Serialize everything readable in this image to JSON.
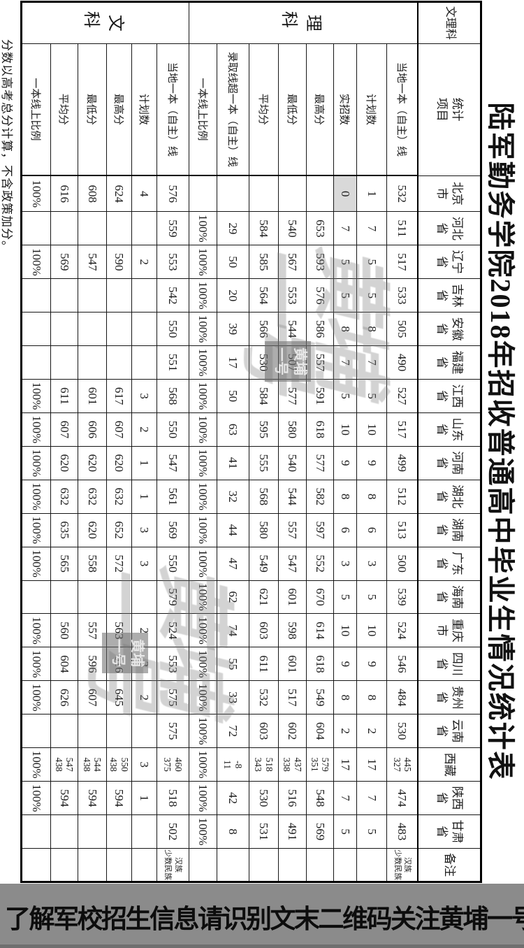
{
  "title": "陆军勤务学院2018年招收普通高中毕业生情况统计表",
  "corner": {
    "subject_header": "文理科",
    "stat_header": "统计\n项目"
  },
  "remark_header": "备注",
  "provinces": [
    "北京市",
    "河北省",
    "辽宁省",
    "吉林省",
    "安徽省",
    "福建省",
    "江西省",
    "山东省",
    "河南省",
    "湖北省",
    "湖南省",
    "广东省",
    "海南省",
    "重庆市",
    "四川省",
    "贵州省",
    "云南省",
    "西藏",
    "陕西省",
    "甘肃省"
  ],
  "groups": [
    {
      "label": "理科",
      "row_count": 8
    },
    {
      "label": "文科",
      "row_count": 6
    }
  ],
  "rows": [
    {
      "label": "当地一本（自主）线",
      "values": [
        "532",
        "511",
        "517",
        "533",
        "505",
        "490",
        "527",
        "517",
        "499",
        "512",
        "513",
        "500",
        "539",
        "524",
        "546",
        "484",
        "530",
        "445\n327",
        "474",
        "483"
      ],
      "remark": "汉族\n少数民族"
    },
    {
      "label": "计划数",
      "values": [
        "1",
        "7",
        "5",
        "5",
        "8",
        "7",
        "5",
        "10",
        "9",
        "8",
        "6",
        "3",
        "5",
        "10",
        "9",
        "8",
        "2",
        "17",
        "7",
        "5"
      ],
      "remark": ""
    },
    {
      "label": "实招数",
      "values": [
        "0",
        "7",
        "5",
        "5",
        "8",
        "7",
        "5",
        "10",
        "9",
        "8",
        "6",
        "3",
        "5",
        "10",
        "9",
        "8",
        "2",
        "17",
        "7",
        "5"
      ],
      "remark": ""
    },
    {
      "label": "最高分",
      "values": [
        "",
        "653",
        "593",
        "576",
        "586",
        "557",
        "591",
        "618",
        "577",
        "582",
        "597",
        "552",
        "670",
        "614",
        "618",
        "549",
        "604",
        "579\n351",
        "548",
        "569"
      ],
      "remark": ""
    },
    {
      "label": "最低分",
      "values": [
        "",
        "540",
        "567",
        "553",
        "544",
        "507",
        "577",
        "580",
        "540",
        "544",
        "557",
        "547",
        "601",
        "598",
        "601",
        "517",
        "602",
        "437\n338",
        "516",
        "491"
      ],
      "remark": ""
    },
    {
      "label": "平均分",
      "values": [
        "",
        "584",
        "585",
        "564",
        "566",
        "530",
        "584",
        "595",
        "555",
        "568",
        "580",
        "549",
        "621",
        "603",
        "611",
        "532",
        "603",
        "518\n343",
        "530",
        "531"
      ],
      "remark": ""
    },
    {
      "label": "录取线超一本（自主）线",
      "values": [
        "",
        "29",
        "50",
        "20",
        "39",
        "17",
        "50",
        "63",
        "41",
        "32",
        "44",
        "47",
        "62",
        "74",
        "55",
        "33",
        "72",
        "-8\n11",
        "42",
        "8"
      ],
      "remark": ""
    },
    {
      "label": "一本线上比例",
      "values": [
        "",
        "100%",
        "100%",
        "100%",
        "100%",
        "100%",
        "100%",
        "100%",
        "100%",
        "100%",
        "100%",
        "100%",
        "100%",
        "100%",
        "100%",
        "100%",
        "100%",
        "100%",
        "100%",
        "100%"
      ],
      "remark": ""
    },
    {
      "label": "当地一本（自主）线",
      "values": [
        "576",
        "559",
        "553",
        "542",
        "550",
        "551",
        "568",
        "550",
        "547",
        "561",
        "569",
        "550",
        "579",
        "524",
        "553",
        "575",
        "575",
        "460\n375",
        "518",
        "502"
      ],
      "remark": "汉族\n少数民族"
    },
    {
      "label": "计划数",
      "values": [
        "4",
        "",
        "2",
        "",
        "",
        "",
        "3",
        "2",
        "1",
        "1",
        "3",
        "3",
        "",
        "2",
        "3",
        "2",
        "",
        "3",
        "1",
        ""
      ],
      "remark": ""
    },
    {
      "label": "最高分",
      "values": [
        "624",
        "",
        "590",
        "",
        "",
        "",
        "617",
        "607",
        "620",
        "632",
        "652",
        "572",
        "",
        "563",
        "616",
        "645",
        "",
        "550\n438",
        "594",
        ""
      ],
      "remark": ""
    },
    {
      "label": "最低分",
      "values": [
        "608",
        "",
        "547",
        "",
        "",
        "",
        "601",
        "606",
        "620",
        "632",
        "620",
        "558",
        "",
        "557",
        "596",
        "607",
        "",
        "544\n438",
        "594",
        ""
      ],
      "remark": ""
    },
    {
      "label": "平均分",
      "values": [
        "616",
        "",
        "569",
        "",
        "",
        "",
        "611",
        "607",
        "620",
        "632",
        "635",
        "565",
        "",
        "560",
        "604",
        "626",
        "",
        "547\n438",
        "594",
        ""
      ],
      "remark": ""
    },
    {
      "label": "一本线上比例",
      "values": [
        "100%",
        "",
        "100%",
        "",
        "",
        "",
        "100%",
        "100%",
        "100%",
        "100%",
        "100%",
        "100%",
        "",
        "100%",
        "100%",
        "100%",
        "",
        "100%",
        "100%",
        ""
      ],
      "remark": ""
    }
  ],
  "highlight": {
    "row_index": 2,
    "col_index": 0,
    "color": "#d9d9d9"
  },
  "footnote": "分数以高考总分计算，不含政策加分。",
  "banner": {
    "text": "了解军校招生信息请识别文末二维码关注黄埔一号",
    "background": "#8b8b8b",
    "text_color": "#0d0d0d"
  },
  "watermark_text": "黄埔一号"
}
